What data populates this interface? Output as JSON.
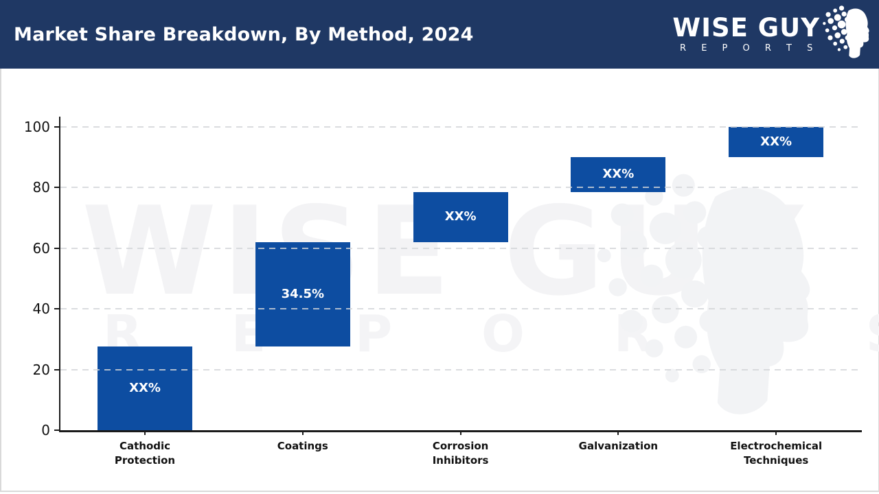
{
  "header": {
    "title": "Market Share Breakdown, By Method, 2024",
    "bg_color": "#1f3864",
    "logo": {
      "name": "WISE GUY",
      "subtitle": "R E P O R T S"
    }
  },
  "watermark": {
    "line1": "WISE GUY",
    "line2": "R E P O R T S"
  },
  "chart_data": {
    "type": "bar",
    "subtype": "waterfall",
    "title": "Market Share Breakdown, By Method, 2024",
    "categories": [
      "Cathodic Protection",
      "Coatings",
      "Corrosion Inhibitors",
      "Galvanization",
      "Electrochemical Techniques"
    ],
    "series": [
      {
        "name": "Market Share (%)",
        "starts": [
          0,
          27.5,
          62,
          78.5,
          90
        ],
        "ends": [
          27.5,
          62,
          78.5,
          90,
          100
        ],
        "values": [
          27.5,
          34.5,
          16.5,
          11.5,
          10
        ]
      }
    ],
    "bar_labels": [
      "XX%",
      "34.5%",
      "XX%",
      "XX%",
      "XX%"
    ],
    "yticks": [
      0,
      20,
      40,
      60,
      80,
      100
    ],
    "ylim": [
      0,
      100
    ],
    "xlabel": "",
    "ylabel": "",
    "bar_color": "#0d4da1",
    "grid": "horizontal-dashed",
    "legend": "none"
  }
}
